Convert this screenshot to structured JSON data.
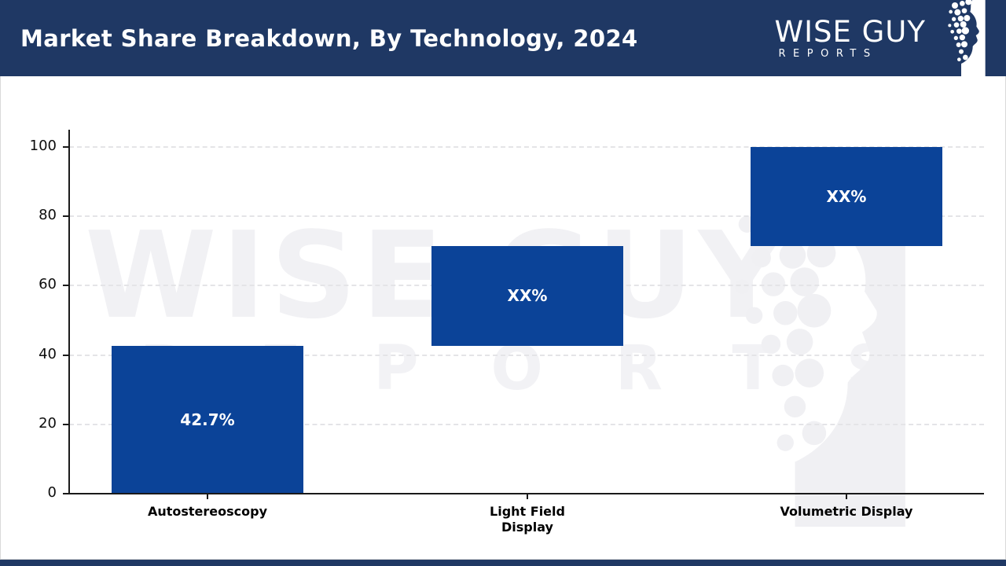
{
  "header": {
    "title": "Market Share Breakdown, By Technology, 2024",
    "logo": {
      "line1": "WISE GUY",
      "line2": "REPORTS"
    }
  },
  "watermark": {
    "line1": "WISE GUY",
    "line2": "REPORTS"
  },
  "chart_data": {
    "type": "bar",
    "variant": "floating_segment_bars",
    "title": "Market Share Breakdown, By Technology, 2024",
    "categories": [
      "Autostereoscopy",
      "Light Field Display",
      "Volumetric Display"
    ],
    "bars": [
      {
        "category": "Autostereoscopy",
        "category_display": "Autostereoscopy",
        "label": "42.7%",
        "start": 0,
        "end": 42.7
      },
      {
        "category": "Light Field Display",
        "category_display": "Light Field\nDisplay",
        "label": "XX%",
        "start": 42.7,
        "end": 71.4
      },
      {
        "category": "Volumetric Display",
        "category_display": "Volumetric Display",
        "label": "XX%",
        "start": 71.4,
        "end": 100
      }
    ],
    "ylim": [
      0,
      100
    ],
    "yticks": [
      0,
      20,
      40,
      60,
      80,
      100
    ],
    "grid": "horizontal-dashed",
    "legend": "none",
    "bar_color": "#0B4398",
    "bar_label_color": "#FFFFFF"
  },
  "colors": {
    "header_bg": "#1F3864",
    "footer_bg": "#1F3864",
    "axis": "#1A1A1A",
    "gridline": "#E4E4E7",
    "watermark": "#F1F1F4"
  }
}
